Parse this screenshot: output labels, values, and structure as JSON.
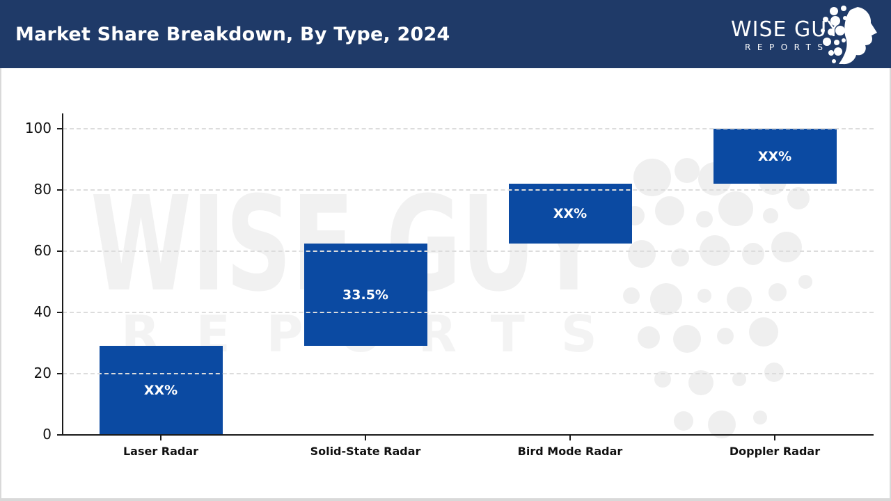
{
  "header": {
    "title": "Market Share Breakdown, By Type, 2024",
    "logo": {
      "line1": "WISE GUY",
      "line2": "REPORTS"
    }
  },
  "watermark": {
    "line1": "WISE GUY",
    "line2": "REPORTS"
  },
  "chart_data": {
    "type": "bar",
    "subtype": "floating-segment-waterfall",
    "title": "Market Share Breakdown, By Type, 2024",
    "categories": [
      "Laser Radar",
      "Solid-State Radar",
      "Bird Mode Radar",
      "Doppler Radar"
    ],
    "bars": [
      {
        "category": "Laser Radar",
        "start": 0,
        "end": 29,
        "label": "XX%"
      },
      {
        "category": "Solid-State Radar",
        "start": 29,
        "end": 62.5,
        "label": "33.5%"
      },
      {
        "category": "Bird Mode Radar",
        "start": 62.5,
        "end": 82,
        "label": "XX%"
      },
      {
        "category": "Doppler Radar",
        "start": 82,
        "end": 100,
        "label": "XX%"
      }
    ],
    "yticks": [
      0,
      20,
      40,
      60,
      80,
      100
    ],
    "ylim": [
      0,
      105
    ],
    "grid": "dashed-horizontal",
    "legend": "none",
    "colors": {
      "bar": "#0b4aa2",
      "header_bg": "#1f3a68",
      "grid": "#dcdcdc",
      "axis": "#1a1a1a",
      "bar_label": "#ffffff"
    }
  }
}
